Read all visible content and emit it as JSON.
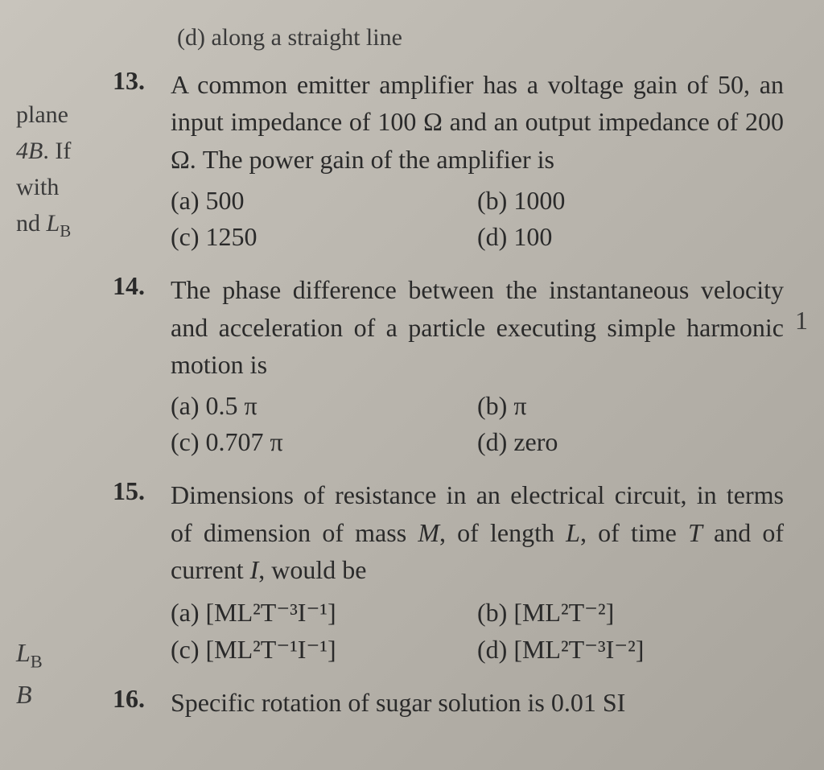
{
  "page": {
    "background_color": "#bcb8b0",
    "text_color": "#2a2a2a",
    "font_family": "Georgia, Times New Roman, serif",
    "question_fontsize": 32,
    "option_fontsize": 32
  },
  "left_margin": {
    "line1": "plane",
    "line2_prefix": "4B",
    "line2_suffix": ". If",
    "line3": "with",
    "line4_prefix": "nd ",
    "line4_symbol": "L",
    "line4_sub": "B"
  },
  "left_margin_bottom": {
    "line1_symbol": "L",
    "line1_sub": "B",
    "line2": "B"
  },
  "right_edge": {
    "text": "1"
  },
  "prev_question": {
    "label": "(d)",
    "text": "along a straight line"
  },
  "q13": {
    "number": "13.",
    "text": "A common emitter amplifier has a voltage gain of 50, an input impedance of 100 Ω and an output impedance of 200 Ω. The power gain of the amplifier is",
    "options": {
      "a": {
        "label": "(a)",
        "value": "500"
      },
      "b": {
        "label": "(b)",
        "value": "1000"
      },
      "c": {
        "label": "(c)",
        "value": "1250"
      },
      "d": {
        "label": "(d)",
        "value": "100"
      }
    }
  },
  "q14": {
    "number": "14.",
    "text": "The phase difference between the instantaneous velocity and acceleration of a particle executing simple harmonic motion is",
    "options": {
      "a": {
        "label": "(a)",
        "value": "0.5 π"
      },
      "b": {
        "label": "(b)",
        "value": "π"
      },
      "c": {
        "label": "(c)",
        "value": "0.707 π"
      },
      "d": {
        "label": "(d)",
        "value": "zero"
      }
    }
  },
  "q15": {
    "number": "15.",
    "text_part1": "Dimensions of resistance in an electrical circuit, in terms of dimension of mass ",
    "text_m": "M",
    "text_part2": ", of length ",
    "text_l": "L",
    "text_part3": ", of time ",
    "text_t": "T",
    "text_part4": " and of current ",
    "text_i": "I",
    "text_part5": ", would be",
    "options": {
      "a": {
        "label": "(a)",
        "dim": "[ML²T⁻³I⁻¹]"
      },
      "b": {
        "label": "(b)",
        "dim": "[ML²T⁻²]"
      },
      "c": {
        "label": "(c)",
        "dim": "[ML²T⁻¹I⁻¹]"
      },
      "d": {
        "label": "(d)",
        "dim": "[ML²T⁻³I⁻²]"
      }
    }
  },
  "q16": {
    "number": "16.",
    "text": "Specific rotation of sugar solution is 0.01 SI"
  }
}
